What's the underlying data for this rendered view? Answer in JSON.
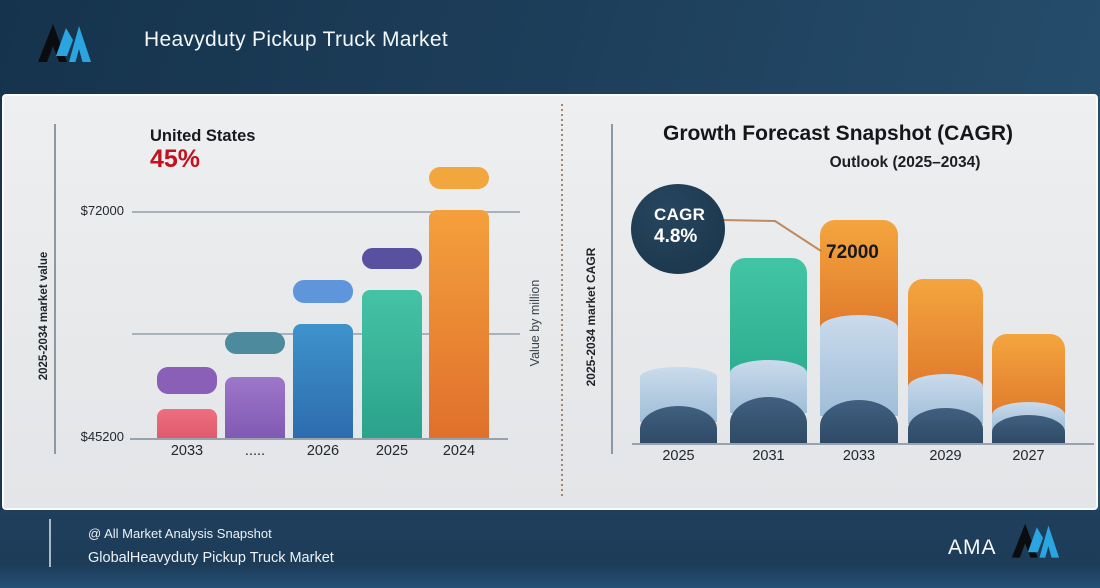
{
  "header": {
    "title": "Heavyduty Pickup Truck Market",
    "logo": "AMA"
  },
  "footer": {
    "note": "@ All Market Analysis Snapshot",
    "title": "GlobalHeavyduty Pickup Truck Market",
    "brand": "AMA"
  },
  "palette": {
    "navy_band": "#1d3c58",
    "panel_bg": "#e9ebed",
    "red_accent": "#c1121f",
    "divider_dot": "#a5866b",
    "axis": "#8a99a8",
    "grid": "#a9b2bb",
    "logo_blue": "#2aa5e0",
    "orange": [
      "#f4a53e",
      "#e07b2d"
    ],
    "teal": [
      "#42c5a5",
      "#2dae90"
    ],
    "light_blue": [
      "#cadbec",
      "#9fbdd8"
    ],
    "dark_navy": [
      "#416080",
      "#2e4a66"
    ]
  },
  "chart_data": [
    {
      "type": "bar",
      "region_label": "United States",
      "highlight_percent": "45%",
      "ylabel": "2025-2034 market value",
      "ylabel_secondary": "Value by million",
      "yticks": [
        "$72000",
        "$45200"
      ],
      "ymin": 45200,
      "ymax": 72000,
      "categories": [
        "2033",
        ".....",
        "2026",
        "2025",
        "2024"
      ],
      "values": [
        48600,
        52400,
        58600,
        62600,
        72000
      ],
      "bar_colors": [
        [
          "#ee6f7f",
          "#e05a6e"
        ],
        [
          "#9d77c9",
          "#8059b3"
        ],
        [
          "#3e93cb",
          "#2d6cae"
        ],
        [
          "#45c3a6",
          "#2ba28b"
        ],
        [
          "#f4a03c",
          "#e0702c"
        ]
      ],
      "caps": [
        {
          "color": "#8a5fb8",
          "height": 27,
          "gap": 15
        },
        {
          "color": "#4d8a9e",
          "height": 22,
          "gap": 23
        },
        {
          "color": "#5f95da",
          "height": 23,
          "gap": 21
        },
        {
          "color": "#59519f",
          "height": 21,
          "gap": 21
        },
        {
          "color": "#f2a63e",
          "height": 22,
          "gap": 21
        }
      ]
    },
    {
      "type": "stacked-bar",
      "title": "Growth Forecast Snapshot (CAGR)",
      "subtitle": "Outlook (2025–2034)",
      "ylabel": "2025-2034 market CAGR",
      "badge": {
        "label": "CAGR",
        "value": "4.8%"
      },
      "annotation": {
        "text": "72000",
        "category": "2033"
      },
      "categories": [
        "2025",
        "2031",
        "2033",
        "2029",
        "2027"
      ],
      "bars": [
        {
          "category": "2025",
          "segments": [
            {
              "color": "light_blue",
              "h": 41
            },
            {
              "color": "dark_navy",
              "h": 35
            }
          ]
        },
        {
          "category": "2031",
          "segments": [
            {
              "color": "teal",
              "h": 102
            },
            {
              "color": "light_blue",
              "h": 39
            },
            {
              "color": "dark_navy",
              "h": 44
            }
          ]
        },
        {
          "category": "2033",
          "segments": [
            {
              "color": "orange",
              "h": 95
            },
            {
              "color": "light_blue",
              "h": 87
            },
            {
              "color": "dark_navy",
              "h": 41
            }
          ]
        },
        {
          "category": "2029",
          "segments": [
            {
              "color": "orange",
              "h": 95
            },
            {
              "color": "light_blue",
              "h": 36
            },
            {
              "color": "dark_navy",
              "h": 33
            }
          ]
        },
        {
          "category": "2027",
          "segments": [
            {
              "color": "orange",
              "h": 68
            },
            {
              "color": "light_blue",
              "h": 15
            },
            {
              "color": "dark_navy",
              "h": 26
            }
          ]
        }
      ]
    }
  ]
}
